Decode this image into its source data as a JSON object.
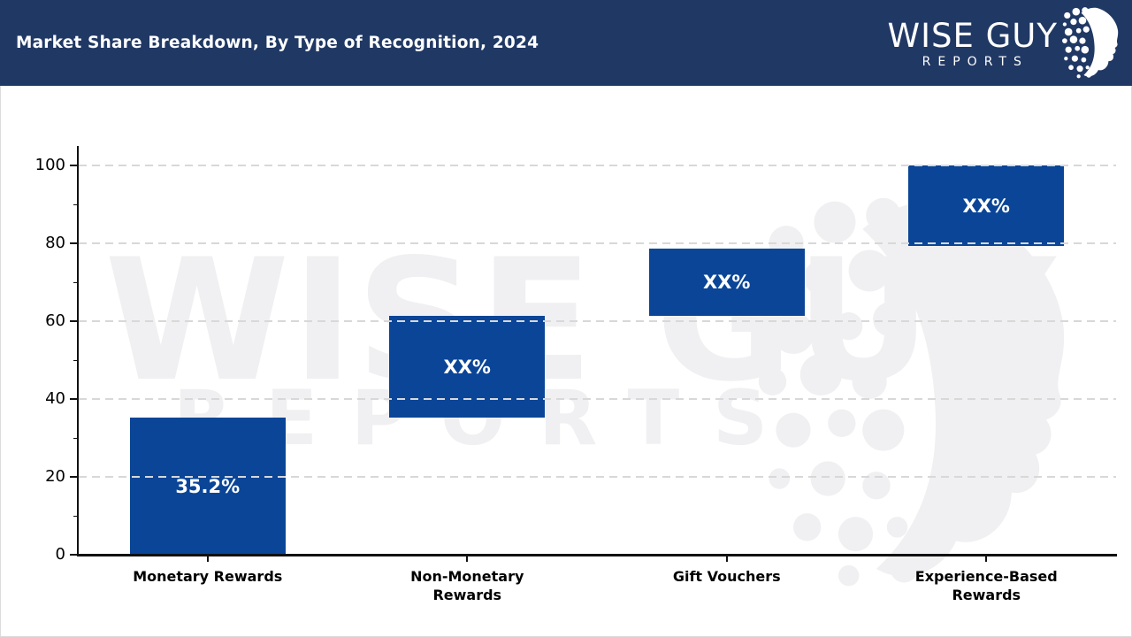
{
  "header": {
    "title": "Market Share Breakdown, By Type of Recognition, 2024",
    "logo": {
      "name": "WISE GUY",
      "subtitle": "REPORTS"
    }
  },
  "watermark": {
    "wordmark": "WISE GUY",
    "subtitle": "REPORTS"
  },
  "chart_data": {
    "type": "bar",
    "subtype": "floating_segment_waterfall",
    "title": "Market Share Breakdown, By Type of Recognition, 2024",
    "categories": [
      "Monetary Rewards",
      "Non-Monetary Rewards",
      "Gift Vouchers",
      "Experience-Based Rewards"
    ],
    "category_label_lines": [
      [
        "Monetary Rewards"
      ],
      [
        "Non-Monetary",
        "Rewards"
      ],
      [
        "Gift Vouchers"
      ],
      [
        "Experience-Based",
        "Rewards"
      ]
    ],
    "segments": [
      {
        "category": "Monetary Rewards",
        "start": 0,
        "end": 35.2,
        "label": "35.2%"
      },
      {
        "category": "Non-Monetary Rewards",
        "start": 35.2,
        "end": 61.3,
        "label": "XX%"
      },
      {
        "category": "Gift Vouchers",
        "start": 61.4,
        "end": 78.7,
        "label": "XX%"
      },
      {
        "category": "Experience-Based Rewards",
        "start": 79.3,
        "end": 100,
        "label": "XX%"
      }
    ],
    "xlabel": "",
    "ylabel": "",
    "ylim": [
      0,
      100
    ],
    "yticks": [
      0,
      20,
      40,
      60,
      80,
      100
    ],
    "minor_yticks": [
      10,
      30,
      50,
      70,
      90
    ],
    "grid": {
      "axis": "y",
      "style": "dashed",
      "color": "#d8d8d8",
      "drawn_above_bars": true
    },
    "legend": "none",
    "colors": {
      "bar": "#0a4597",
      "bar_label": "#ffffff",
      "axis": "#111111",
      "tick_label": "#000000",
      "header_bg": "#203864",
      "watermark": "#f0f0f2"
    }
  }
}
